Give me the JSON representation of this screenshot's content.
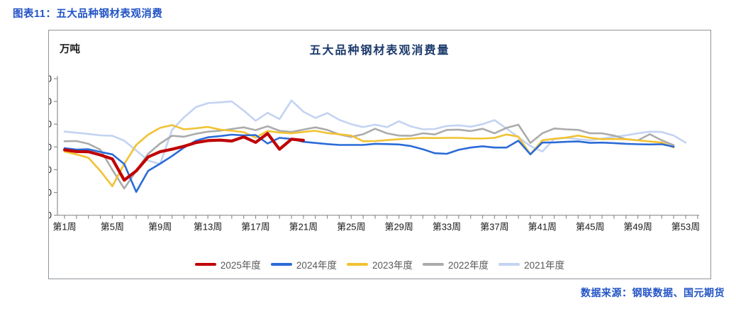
{
  "header": {
    "title": "图表11：五大品种钢材表观消费"
  },
  "chart": {
    "unit_label": "万吨",
    "title": "五大品种钢材表观消费量"
  },
  "footer": {
    "source": "数据来源：钢联数据、国元期货"
  },
  "colors": {
    "header_blue": "#2254c5",
    "title_navy": "#1b3a6b",
    "axis_gray": "#8f8f8f",
    "tick_text": "#1a1a1a",
    "legend_text": "#595959"
  },
  "chart_data": {
    "type": "line",
    "title": "五大品种钢材表观消费量",
    "ylabel": "万吨",
    "ylim": [
      250,
      1450
    ],
    "yticks": [
      1450,
      1250,
      1050,
      850,
      650,
      450,
      250
    ],
    "x_unit": "周",
    "x_range": [
      1,
      53
    ],
    "xtick_weeks": [
      1,
      5,
      9,
      13,
      17,
      21,
      25,
      29,
      33,
      37,
      41,
      45,
      49,
      53
    ],
    "xtick_labels": [
      "第1周",
      "第5周",
      "第9周",
      "第13周",
      "第17周",
      "第21周",
      "第25周",
      "第29周",
      "第33周",
      "第37周",
      "第41周",
      "第45周",
      "第49周",
      "第53周"
    ],
    "grid": false,
    "legend_position": "bottom",
    "series": [
      {
        "name": "2025年度",
        "color": "#c00000",
        "width": 4.2,
        "start_week": 1,
        "values": [
          825,
          810,
          808,
          780,
          745,
          558,
          640,
          762,
          808,
          830,
          856,
          888,
          906,
          910,
          902,
          938,
          890,
          968,
          830,
          918,
          908
        ]
      },
      {
        "name": "2024年度",
        "color": "#2b6bd7",
        "width": 2.6,
        "start_week": 1,
        "values": [
          840,
          827,
          830,
          806,
          785,
          700,
          455,
          640,
          703,
          770,
          845,
          905,
          935,
          945,
          958,
          952,
          955,
          880,
          930,
          920,
          895,
          885,
          875,
          868,
          868,
          868,
          878,
          875,
          872,
          858,
          830,
          795,
          790,
          825,
          845,
          856,
          845,
          845,
          905,
          785,
          888,
          890,
          895,
          898,
          886,
          888,
          884,
          878,
          874,
          872,
          874,
          852
        ]
      },
      {
        "name": "2023年度",
        "color": "#f1c232",
        "width": 2.6,
        "start_week": 1,
        "values": [
          810,
          785,
          755,
          640,
          505,
          700,
          868,
          958,
          1018,
          1042,
          1005,
          1014,
          1026,
          1003,
          992,
          980,
          932,
          990,
          976,
          970,
          982,
          992,
          972,
          962,
          950,
          900,
          902,
          910,
          918,
          924,
          930,
          928,
          930,
          930,
          925,
          924,
          930,
          960,
          940,
          785,
          908,
          922,
          932,
          950,
          930,
          918,
          920,
          918,
          908,
          898,
          888,
          846
        ]
      },
      {
        "name": "2022年度",
        "color": "#ababab",
        "width": 2.6,
        "start_week": 1,
        "values": [
          900,
          902,
          878,
          826,
          650,
          485,
          640,
          790,
          880,
          948,
          940,
          966,
          984,
          992,
          1008,
          1022,
          998,
          1032,
          992,
          982,
          1002,
          1022,
          1000,
          960,
          938,
          962,
          1010,
          970,
          950,
          948,
          970,
          960,
          1000,
          1002,
          990,
          1010,
          970,
          1018,
          1045,
          885,
          970,
          1012,
          1005,
          1000,
          970,
          970,
          950,
          918,
          908,
          962,
          908,
          866
        ]
      },
      {
        "name": "2021年度",
        "color": "#c3d3f2",
        "width": 2.6,
        "start_week": 1,
        "values": [
          985,
          975,
          965,
          952,
          948,
          905,
          820,
          730,
          700,
          1000,
          1110,
          1200,
          1235,
          1242,
          1250,
          1170,
          1080,
          1150,
          1095,
          1258,
          1160,
          1105,
          1148,
          1088,
          1050,
          1024,
          1046,
          1024,
          1076,
          1030,
          1005,
          1008,
          1034,
          1040,
          1028,
          1050,
          1086,
          1012,
          935,
          858,
          810,
          920,
          930,
          918,
          908,
          924,
          940,
          952,
          970,
          984,
          982,
          950,
          888
        ]
      }
    ]
  }
}
